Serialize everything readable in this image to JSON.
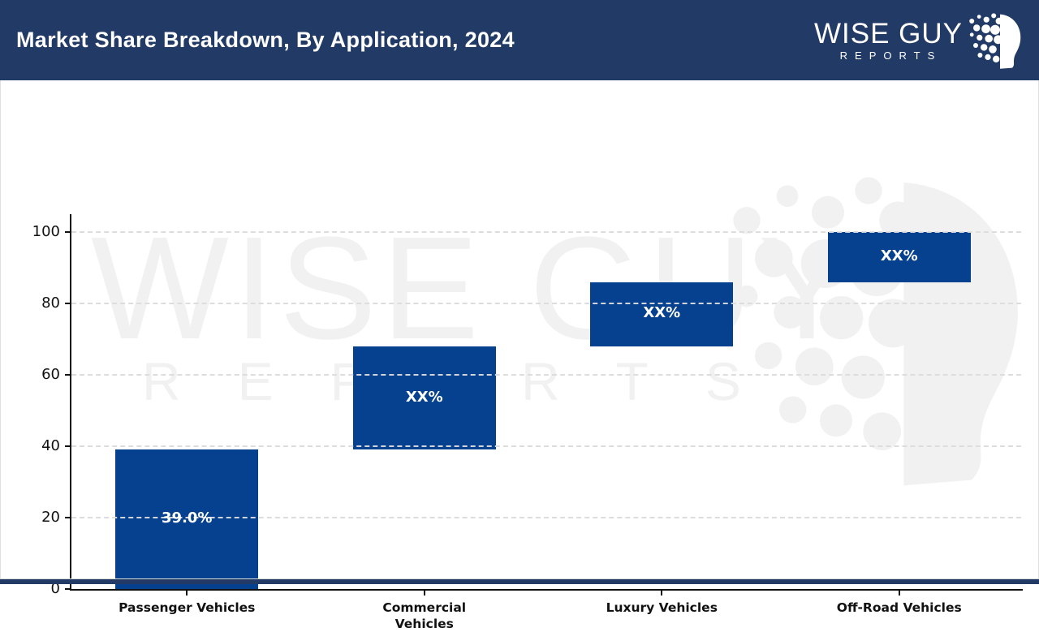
{
  "header": {
    "title": "Market Share Breakdown, By Application, 2024",
    "bg_color": "#213A66",
    "logo": {
      "line1": "WISE GUY",
      "line2": "REPORTS"
    }
  },
  "watermark": {
    "line1": "WISE GUY",
    "line2": "REPORTS"
  },
  "chart_data": {
    "type": "bar",
    "subtype": "waterfall-floating-bars",
    "title": "Market Share Breakdown, By Application, 2024",
    "categories": [
      "Passenger Vehicles",
      "Commercial Vehicles",
      "Luxury Vehicles",
      "Off-Road Vehicles"
    ],
    "category_lines": [
      [
        "Passenger Vehicles"
      ],
      [
        "Commercial",
        "Vehicles"
      ],
      [
        "Luxury Vehicles"
      ],
      [
        "Off-Road Vehicles"
      ]
    ],
    "segments": [
      {
        "category": "Passenger Vehicles",
        "start": 0,
        "end": 39,
        "label": "39.0%"
      },
      {
        "category": "Commercial Vehicles",
        "start": 39,
        "end": 68,
        "label": "XX%"
      },
      {
        "category": "Luxury Vehicles",
        "start": 68,
        "end": 86,
        "label": "XX%"
      },
      {
        "category": "Off-Road Vehicles",
        "start": 86,
        "end": 100,
        "label": "XX%"
      }
    ],
    "xlabel": "",
    "ylabel": "",
    "yticks": [
      0,
      20,
      40,
      60,
      80,
      100
    ],
    "ylim": [
      0,
      105
    ],
    "grid": true,
    "grid_style": "dashed",
    "legend": null,
    "bar_color": "#05418F",
    "label_color": "#ffffff",
    "grid_color": "#dcdcdc",
    "axis_color": "#111111"
  }
}
